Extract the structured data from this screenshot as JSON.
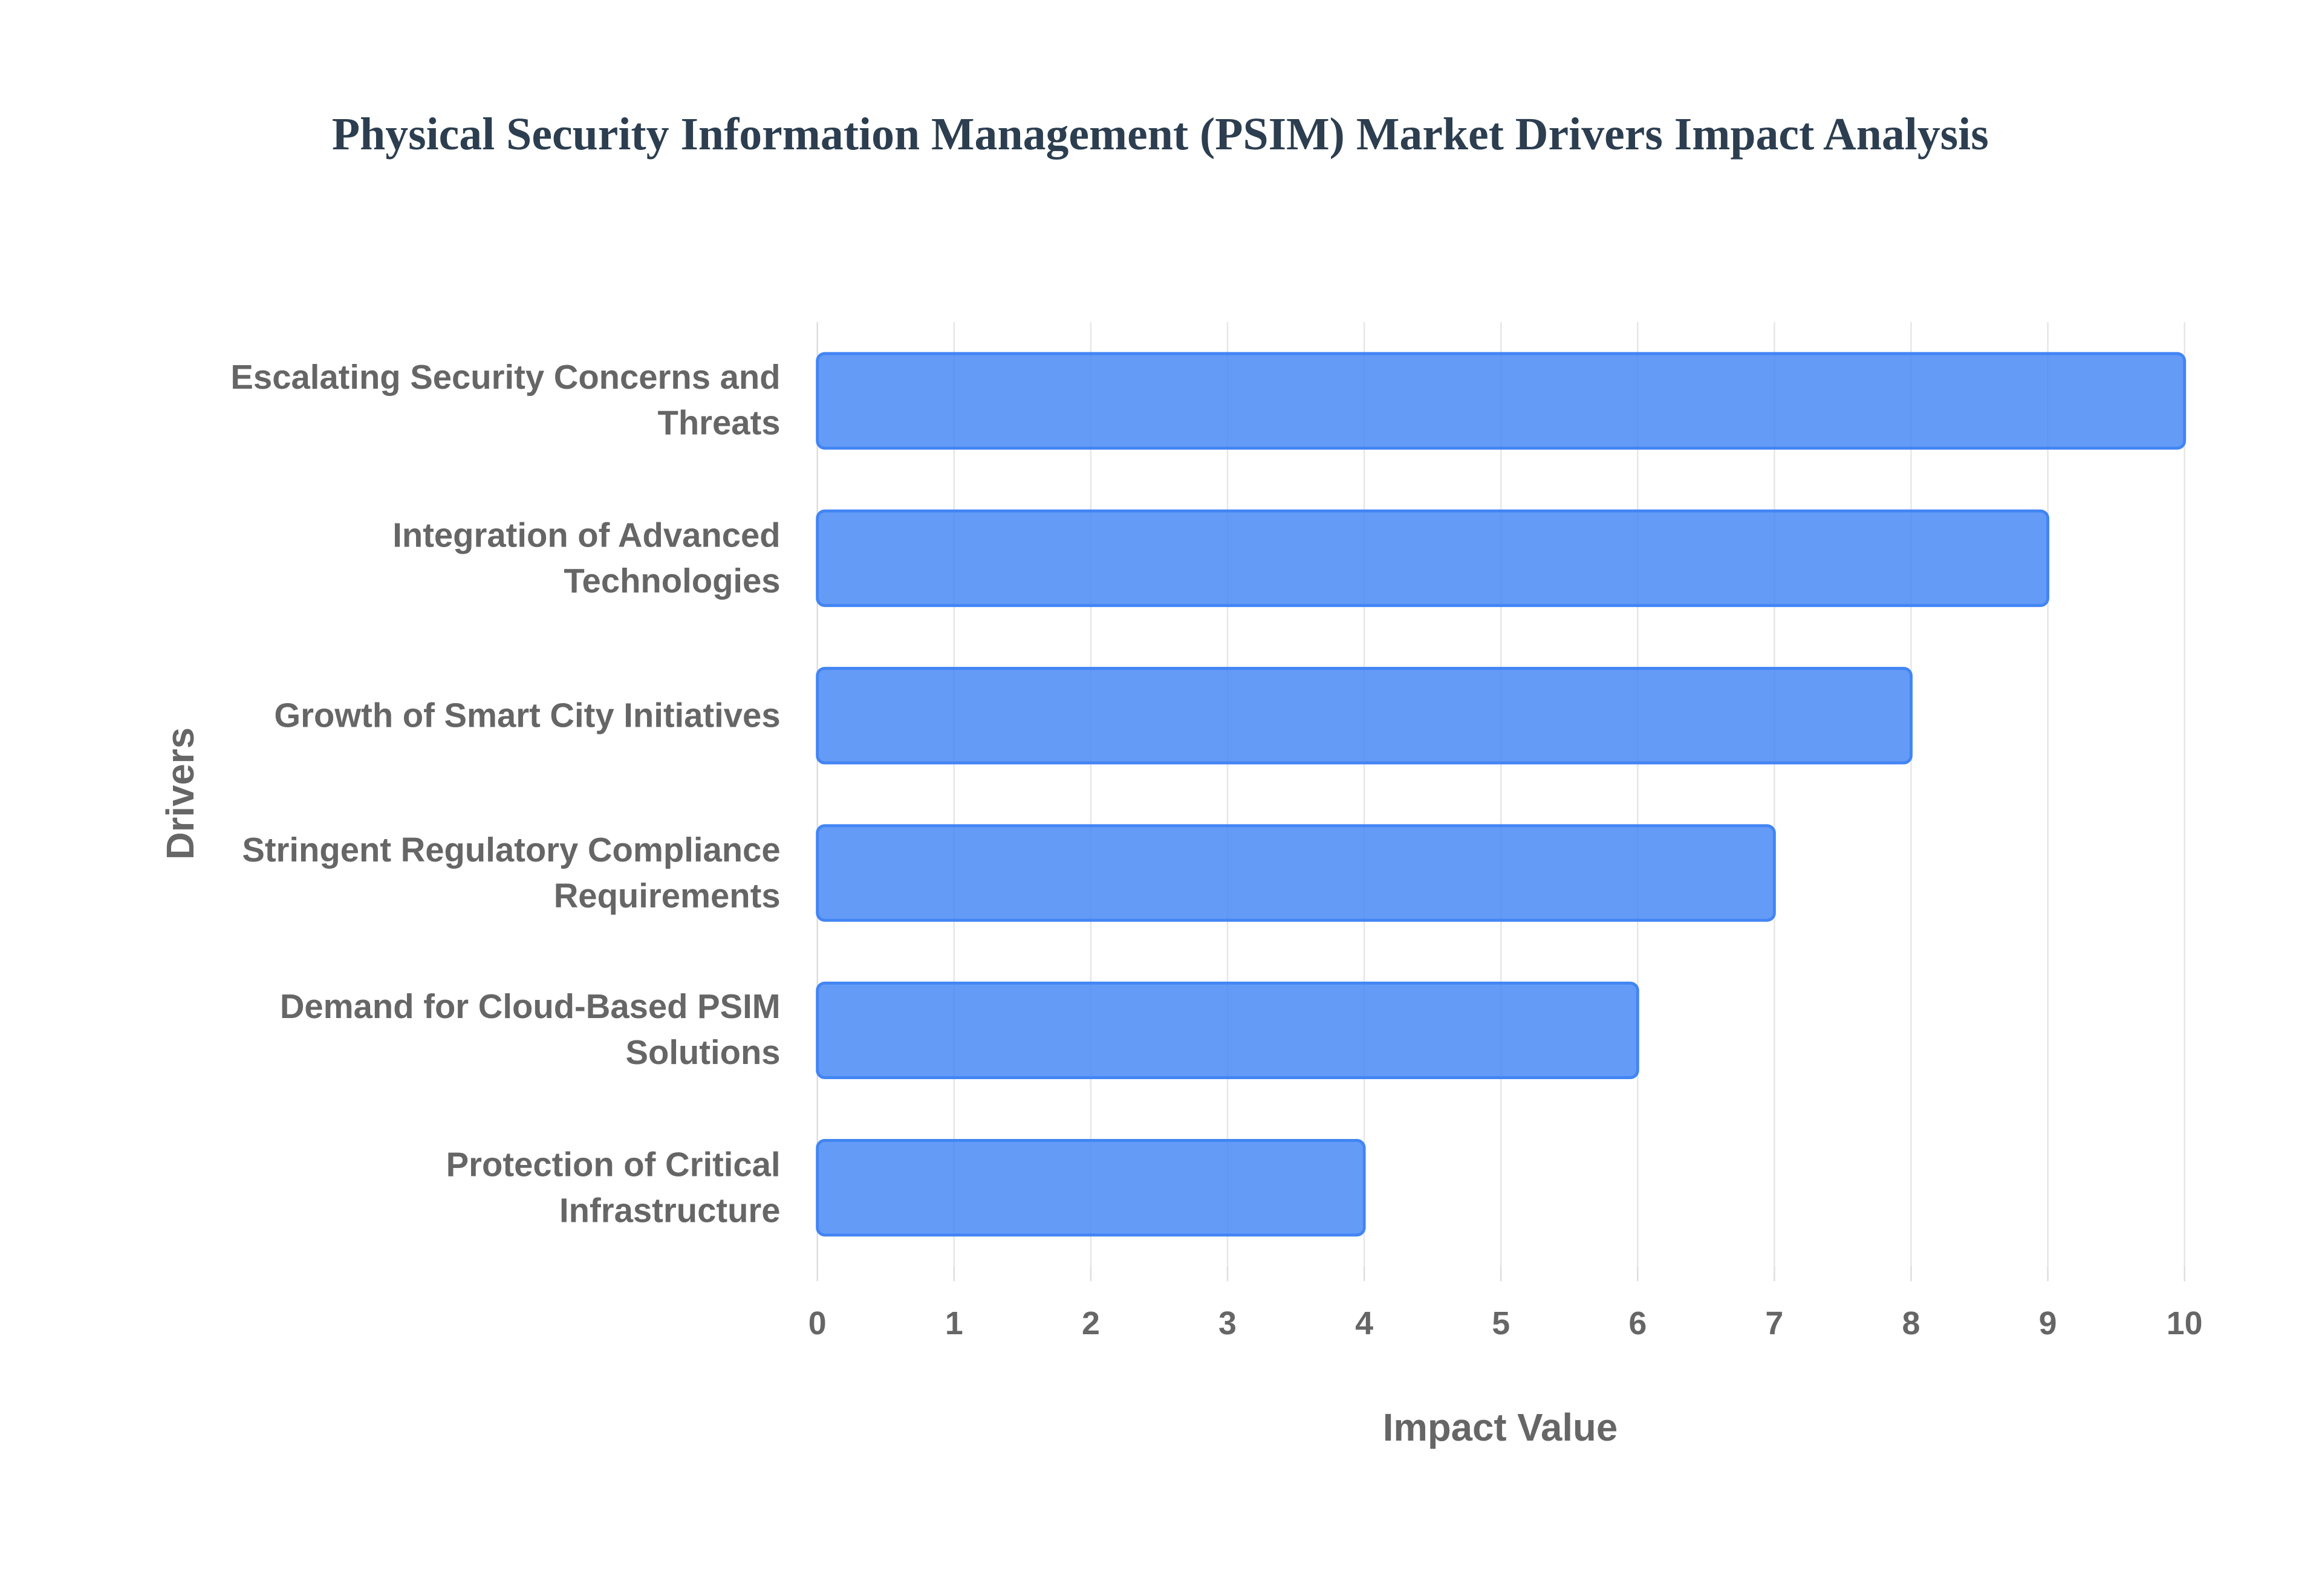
{
  "chart_data": {
    "type": "barh",
    "title": "Physical Security Information Management (PSIM) Market Drivers Impact Analysis",
    "x_label": "Impact Value",
    "y_label": "Drivers",
    "categories": [
      "Escalating Security Concerns and Threats",
      "Integration of Advanced Technologies",
      "Growth of Smart City Initiatives",
      "Stringent Regulatory Compliance Requirements",
      "Demand for Cloud-Based PSIM Solutions",
      "Protection of Critical Infrastructure"
    ],
    "values": [
      10,
      9,
      8,
      7,
      6,
      4
    ],
    "color": "#4285f4",
    "xlim": [
      0,
      10
    ],
    "xticks": [
      0,
      1,
      2,
      3,
      4,
      5,
      6,
      7,
      8,
      9,
      10
    ],
    "grid": true
  }
}
